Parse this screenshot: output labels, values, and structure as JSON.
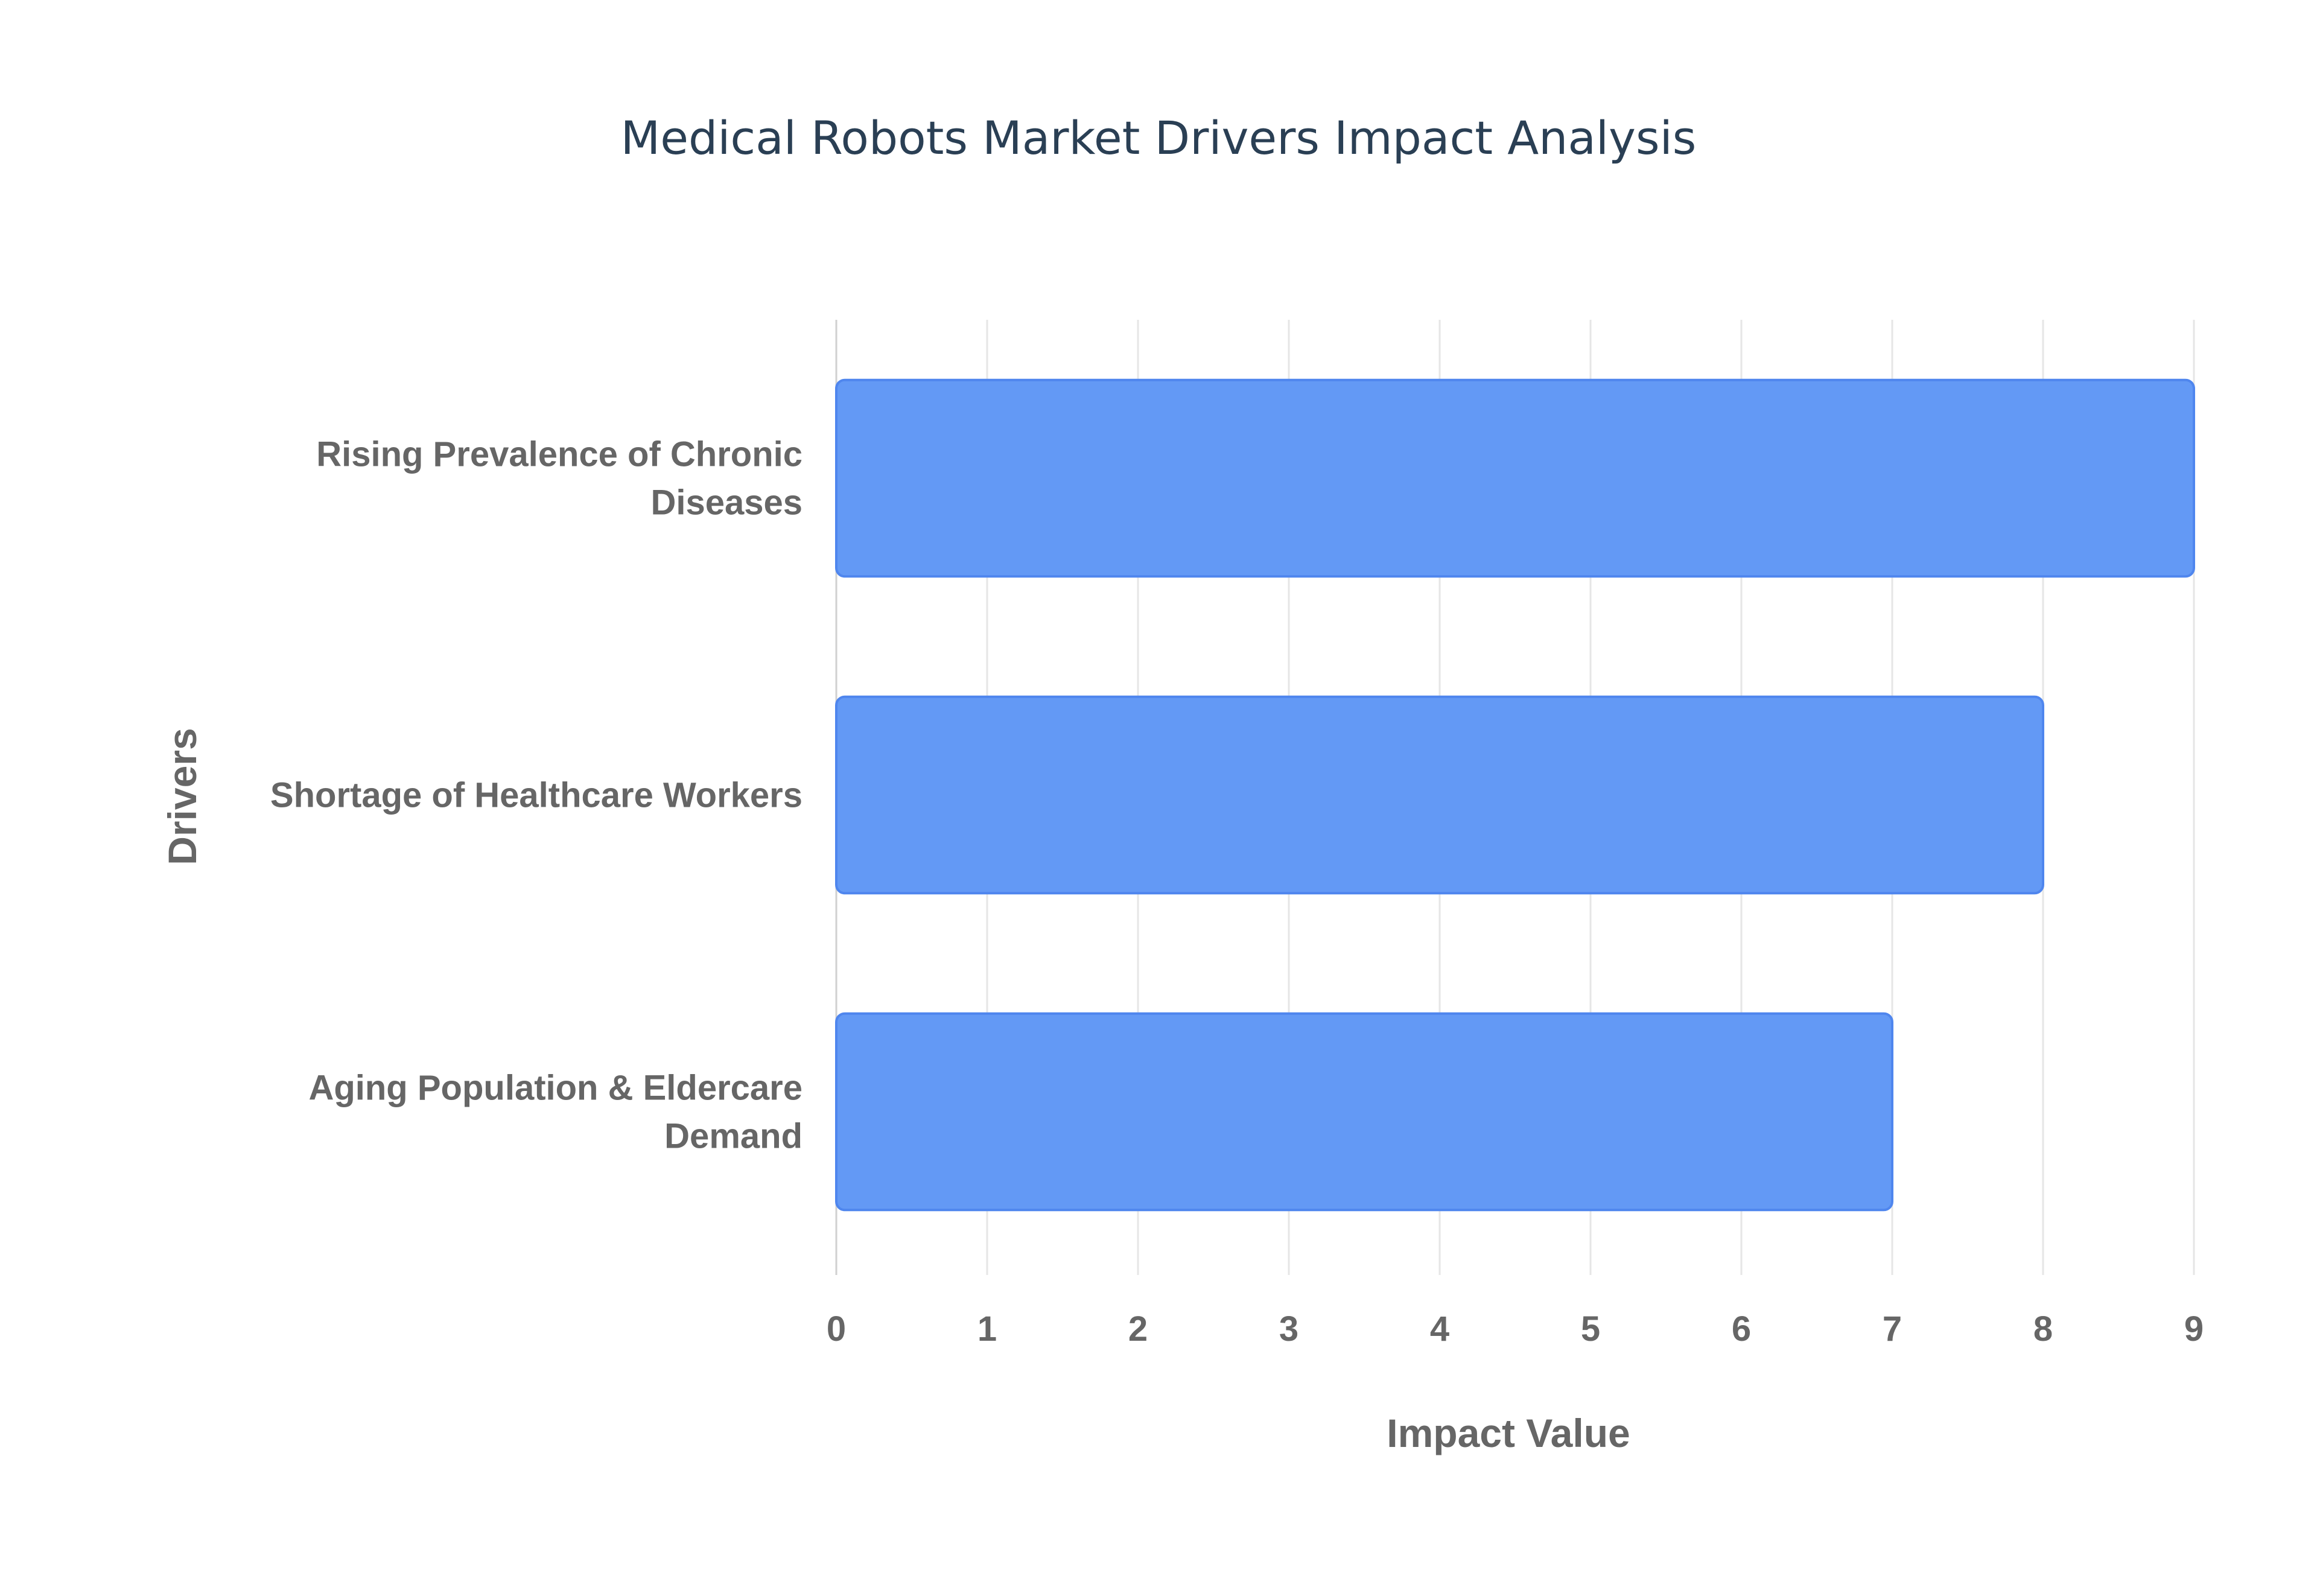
{
  "chart_data": {
    "type": "bar",
    "orientation": "horizontal",
    "title": "Medical Robots Market Drivers Impact Analysis",
    "xlabel": "Impact Value",
    "ylabel": "Drivers",
    "categories": [
      [
        "Rising Prevalence of Chronic",
        "Diseases"
      ],
      [
        "Shortage of Healthcare Workers"
      ],
      [
        "Aging Population & Eldercare",
        "Demand"
      ]
    ],
    "values": [
      9,
      8,
      7
    ],
    "xlim": [
      0,
      9
    ],
    "xticks": [
      "0",
      "1",
      "2",
      "3",
      "4",
      "5",
      "6",
      "7",
      "8",
      "9"
    ],
    "grid": true,
    "legend": "none",
    "colors": {
      "bar_fill": "#6399f5",
      "bar_stroke": "#4f86ee",
      "grid": "#e6e6e6",
      "axis": "#d0d0d0",
      "title": "#2a3f54",
      "label": "#666666"
    }
  }
}
